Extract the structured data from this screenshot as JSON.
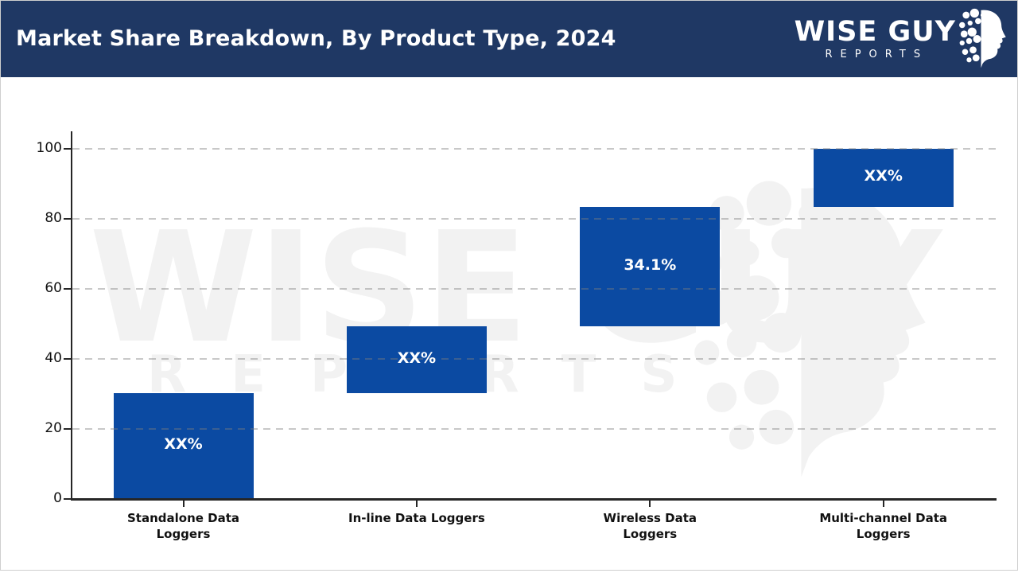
{
  "header": {
    "title": "Market Share Breakdown, By Product Type, 2024",
    "bg_color": "#1f3864",
    "logo": {
      "wordmark": "WISE GUY",
      "subtext": "REPORTS"
    }
  },
  "watermark": {
    "wordmark": "WISE GUY",
    "subtext": "REPORTS"
  },
  "colors": {
    "header_bg": "#1f3864",
    "bar": "#0b4aa2",
    "watermark": "#f2f2f2",
    "axis": "#262626",
    "page_border": "#cfcfcf"
  },
  "chart_data": {
    "type": "bar",
    "subtype": "waterfall-style floating bars",
    "title": "Market Share Breakdown, By Product Type, 2024",
    "categories": [
      "Standalone Data Loggers",
      "In-line Data Loggers",
      "Wireless Data Loggers",
      "Multi-channel Data Loggers"
    ],
    "series": [
      {
        "name": "Market share (%)",
        "segment_start": [
          0,
          30.2,
          49.3,
          83.4
        ],
        "segment_value": [
          30.2,
          19.1,
          34.1,
          16.6
        ],
        "data_labels": [
          "XX%",
          "XX%",
          "34.1%",
          "XX%"
        ]
      }
    ],
    "ylim": [
      0,
      100
    ],
    "yticks": [
      0,
      20,
      40,
      60,
      80,
      100
    ],
    "xlabel": "",
    "ylabel": "",
    "grid": "horizontal dashed",
    "legend": "none",
    "bar_color": "#0b4aa2",
    "label_color": "#ffffff"
  }
}
